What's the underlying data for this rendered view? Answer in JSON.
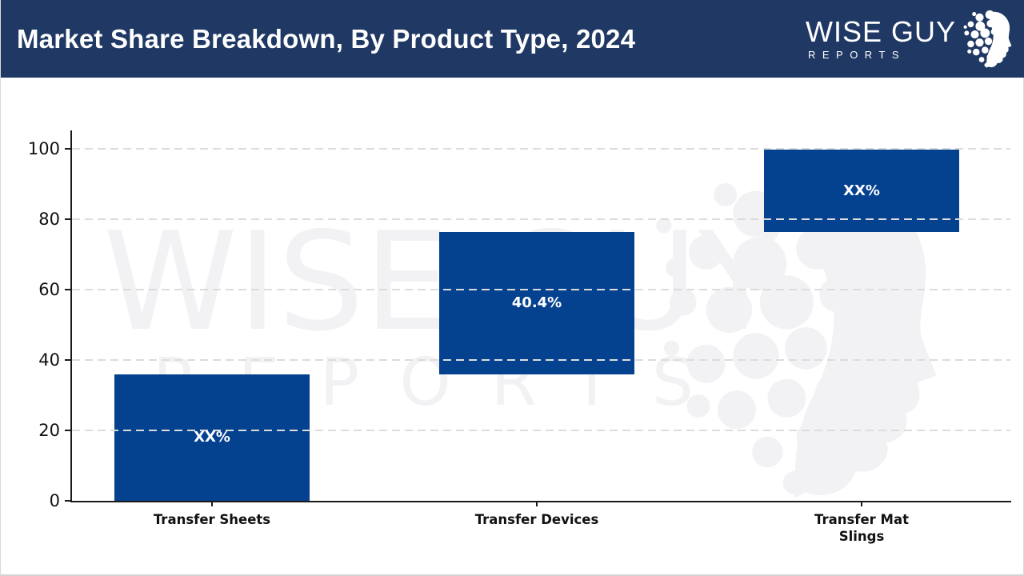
{
  "header": {
    "title": "Market Share Breakdown, By Product Type, 2024",
    "logo": {
      "line1": "WISE GUY",
      "line2": "REPORTS"
    }
  },
  "watermark": {
    "line1": "WISE GUY",
    "line2": "REPORTS"
  },
  "colors": {
    "header_bg": "#1F3864",
    "bar": "#04418F",
    "axis": "#1a1a1a",
    "tick_text": "#111111",
    "gridline": "#dcdcdc",
    "watermark": "#f2f2f5",
    "value_label_text": "#ffffff"
  },
  "chart_data": {
    "type": "bar",
    "subtype": "floating-waterfall",
    "title": "Market Share Breakdown, By Product Type, 2024",
    "categories": [
      "Transfer Sheets",
      "Transfer Devices",
      "Transfer Mat Slings"
    ],
    "category_label_lines": [
      [
        "Transfer Sheets"
      ],
      [
        "Transfer Devices"
      ],
      [
        "Transfer Mat",
        "Slings"
      ]
    ],
    "bars": [
      {
        "category": "Transfer Sheets",
        "from": 0,
        "to": 35.9,
        "value_label": "XX%"
      },
      {
        "category": "Transfer Devices",
        "from": 35.9,
        "to": 76.3,
        "value_label": "40.4%"
      },
      {
        "category": "Transfer Mat Slings",
        "from": 76.3,
        "to": 99.7,
        "value_label": "XX%"
      }
    ],
    "xlabel": "",
    "ylabel": "",
    "yticks": [
      0,
      20,
      40,
      60,
      80,
      100
    ],
    "ylim": [
      0,
      106
    ],
    "grid": {
      "horizontal": true,
      "style": "dashed",
      "at": [
        20,
        40,
        60,
        80,
        100
      ]
    },
    "legend": "none",
    "bar_color": "#04418F"
  }
}
